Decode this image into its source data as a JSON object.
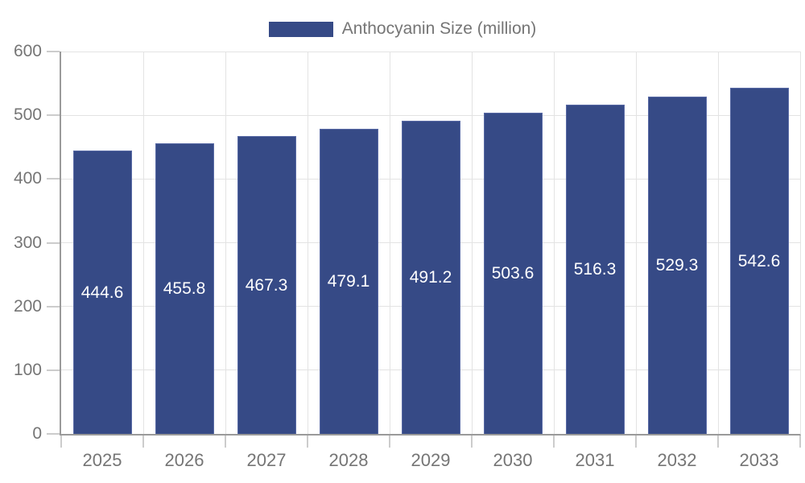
{
  "chart_data": {
    "type": "bar",
    "title": "",
    "series_name": "Anthocyanin Size (million)",
    "categories": [
      "2025",
      "2026",
      "2027",
      "2028",
      "2029",
      "2030",
      "2031",
      "2032",
      "2033"
    ],
    "values": [
      444.6,
      455.8,
      467.3,
      479.1,
      491.2,
      503.6,
      516.3,
      529.3,
      542.6
    ],
    "xlabel": "",
    "ylabel": "",
    "ylim": [
      0,
      600
    ],
    "yticks": [
      0,
      100,
      200,
      300,
      400,
      500,
      600
    ],
    "grid": true,
    "legend_position": "top-center",
    "colors": {
      "bar": "#364a86",
      "bar_edge": "#5a6ba6",
      "bar_label": "#ffffff",
      "grid": "#e3e3e3",
      "axis": "#9a9a9a",
      "tick": "#cccccc",
      "text": "#757575"
    }
  }
}
